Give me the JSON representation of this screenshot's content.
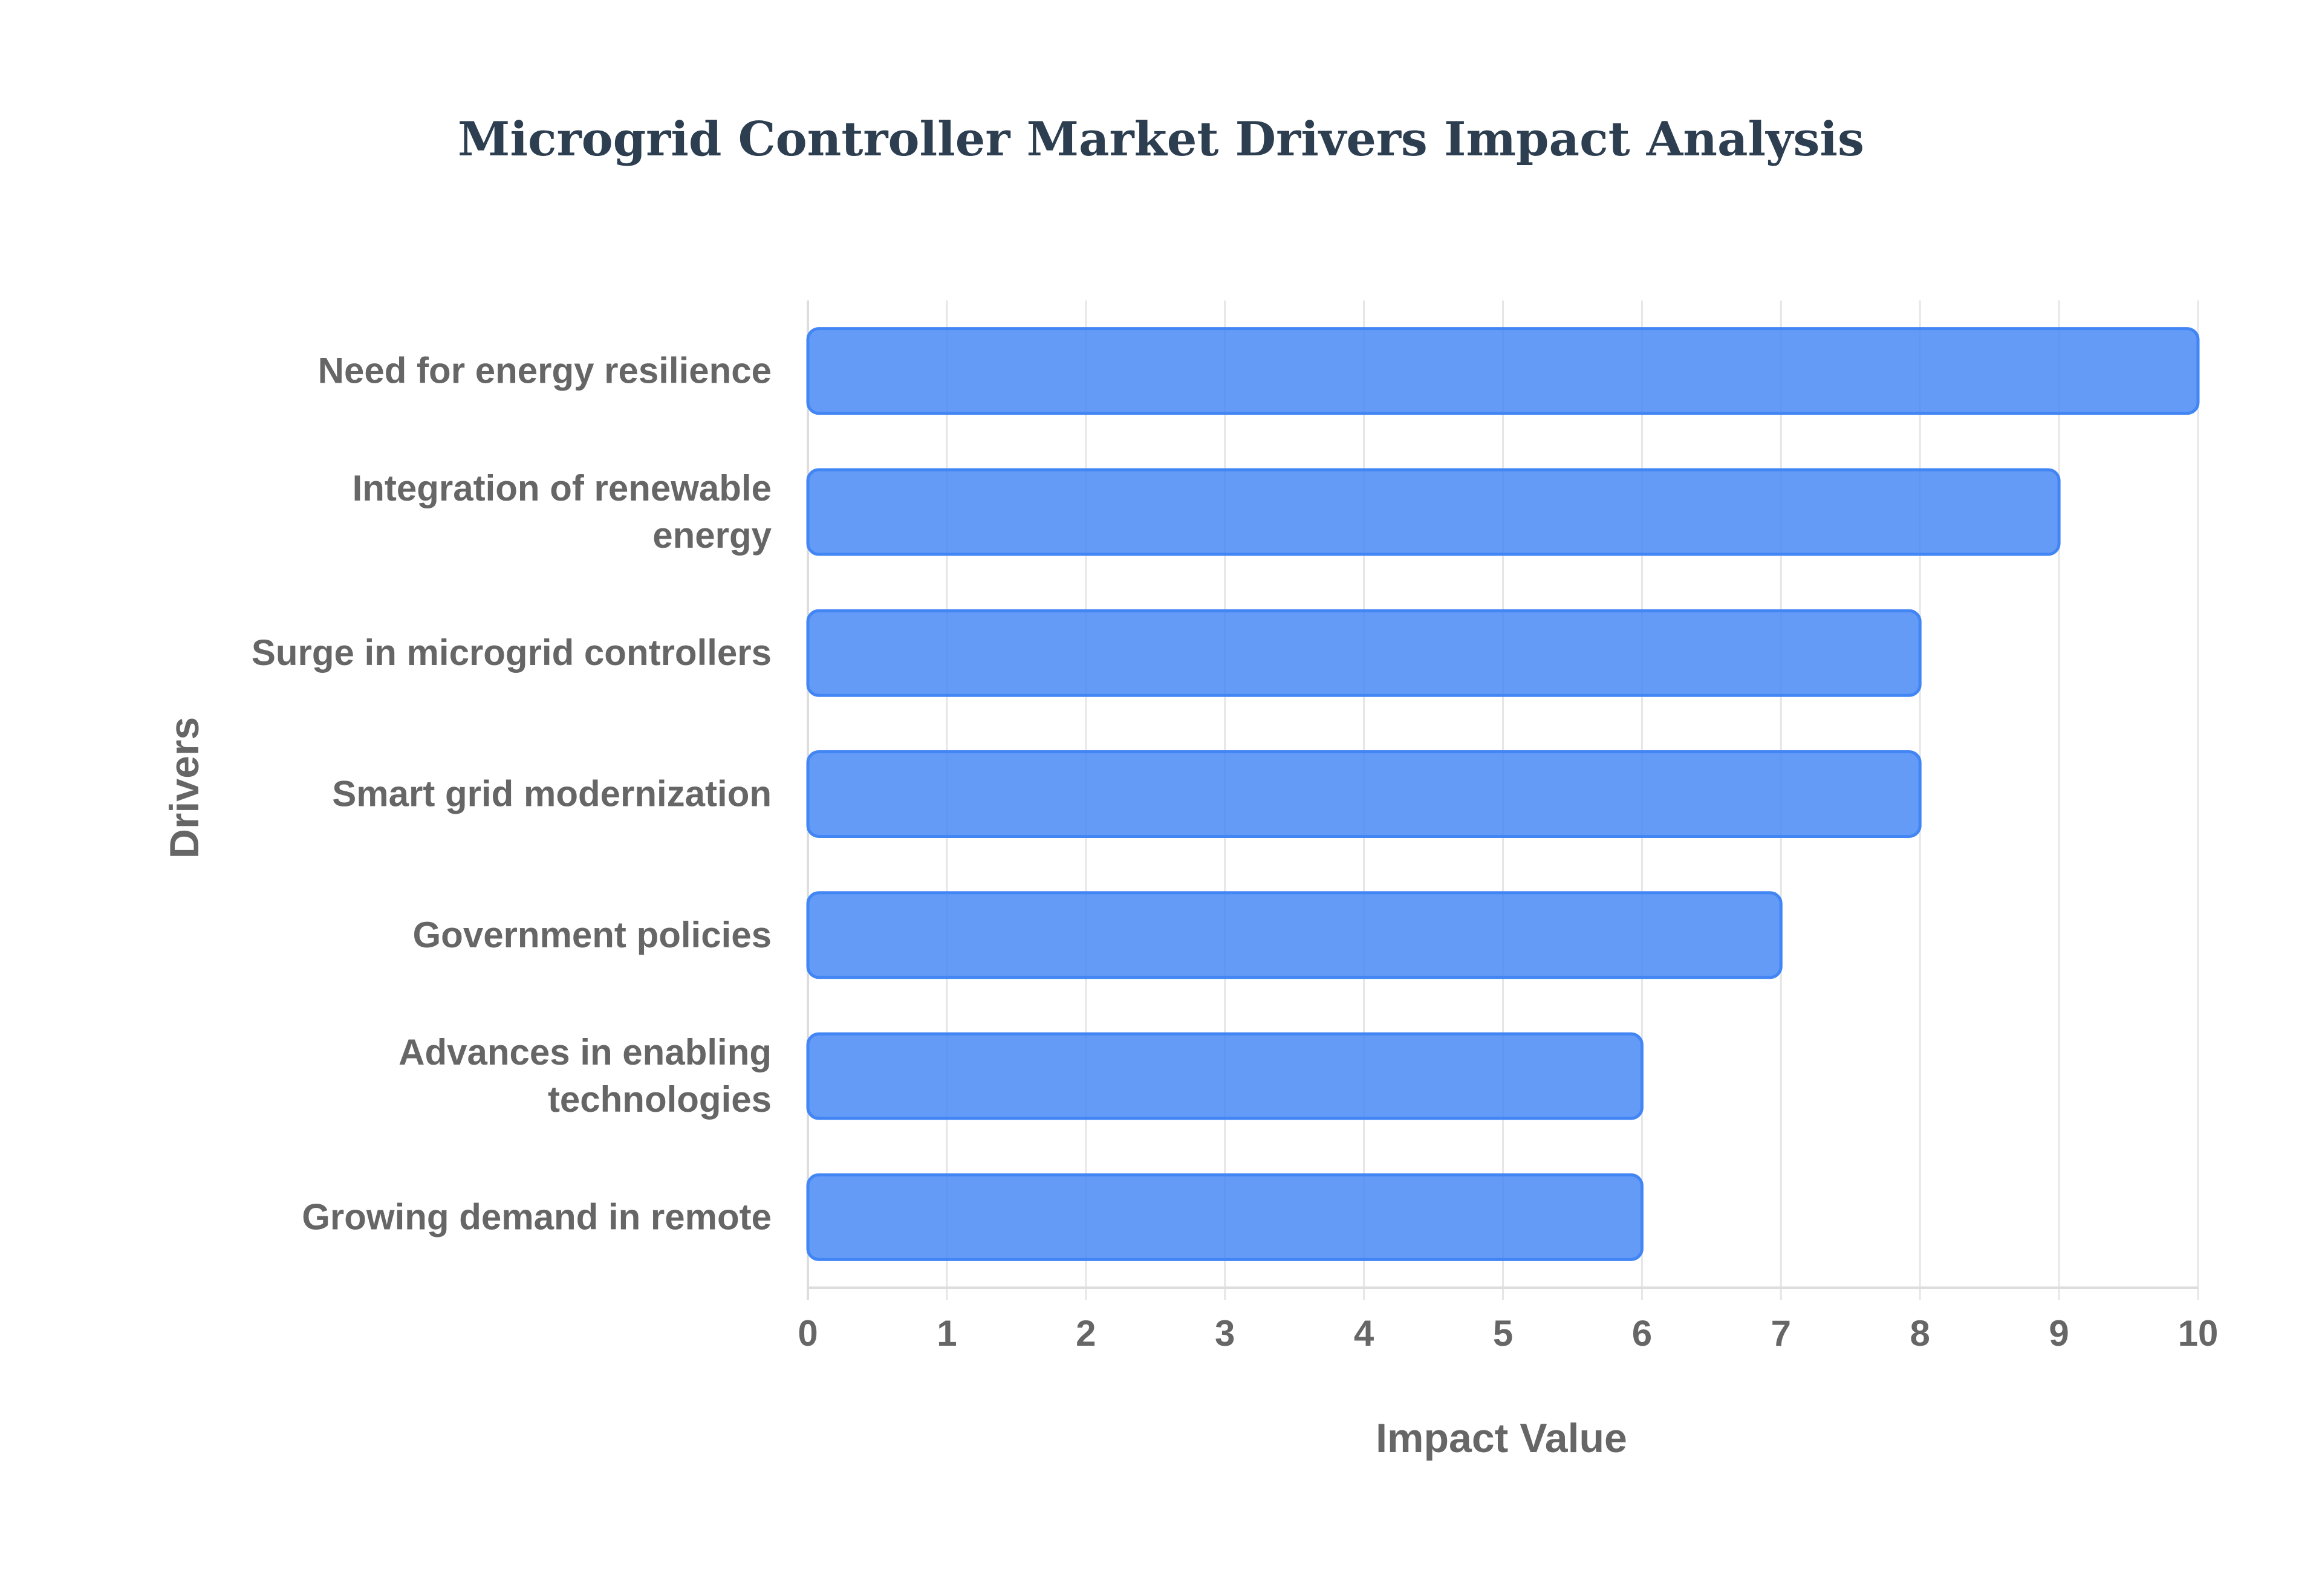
{
  "chart_data": {
    "type": "bar",
    "orientation": "horizontal",
    "title": "Microgrid Controller Market Drivers Impact Analysis",
    "xlabel": "Impact Value",
    "ylabel": "Drivers",
    "categories": [
      [
        "Need for energy resilience"
      ],
      [
        "Integration of renewable",
        "energy"
      ],
      [
        "Surge in microgrid controllers"
      ],
      [
        "Smart grid modernization"
      ],
      [
        "Government policies"
      ],
      [
        "Advances in enabling",
        "technologies"
      ],
      [
        "Growing demand in remote"
      ]
    ],
    "values": [
      10,
      9,
      8,
      8,
      7,
      6,
      6
    ],
    "xlim": [
      0,
      10
    ],
    "xticks": [
      "0",
      "1",
      "2",
      "3",
      "4",
      "5",
      "6",
      "7",
      "8",
      "9",
      "10"
    ],
    "grid": true,
    "bar_color": "#4285f4"
  }
}
